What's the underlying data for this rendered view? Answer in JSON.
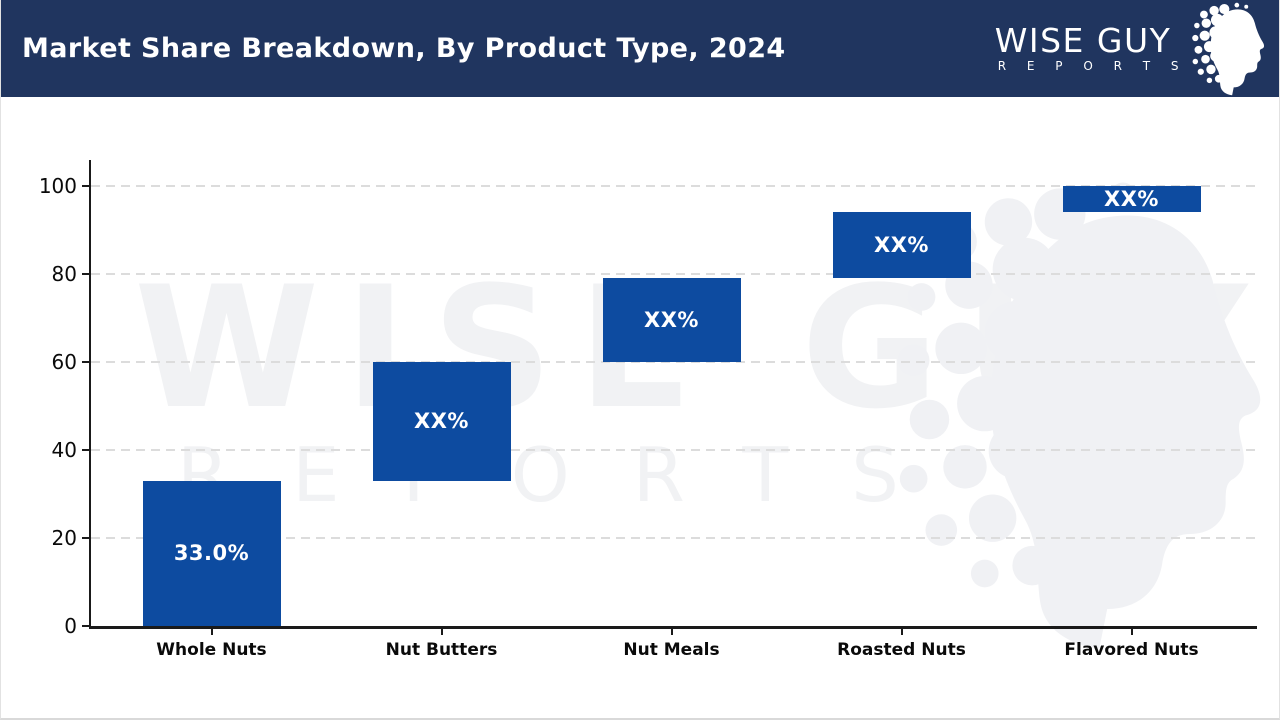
{
  "header": {
    "title": "Market Share Breakdown, By Product Type, 2024",
    "bg_color": "#20355f",
    "logo": {
      "wordmark": "WISE GUY",
      "subtext": "R E P O R T S"
    }
  },
  "watermark": {
    "wordmark": "WISE GUY",
    "subtext": "REPORTS"
  },
  "chart_data": {
    "type": "bar",
    "subtype": "waterfall",
    "title": "Market Share Breakdown, By Product Type, 2024",
    "categories": [
      "Whole Nuts",
      "Nut Butters",
      "Nut Meals",
      "Roasted Nuts",
      "Flavored Nuts"
    ],
    "segments": [
      {
        "category": "Whole Nuts",
        "start": 0,
        "end": 33,
        "label": "33.0%"
      },
      {
        "category": "Nut Butters",
        "start": 33,
        "end": 60,
        "label": "XX%"
      },
      {
        "category": "Nut Meals",
        "start": 60,
        "end": 79,
        "label": "XX%"
      },
      {
        "category": "Roasted Nuts",
        "start": 79,
        "end": 94,
        "label": "XX%"
      },
      {
        "category": "Flavored Nuts",
        "start": 94,
        "end": 100,
        "label": "XX%"
      }
    ],
    "yticks": [
      0,
      20,
      40,
      60,
      80,
      100
    ],
    "ylim": [
      0,
      105
    ],
    "xlabel": "",
    "ylabel": "",
    "legend": "none",
    "grid": "dashed-horizontal",
    "grid_color": "#dcdcdc",
    "bar_color": "#0d4ba0",
    "bar_label_color": "#ffffff",
    "axis_color": "#1a1a1a"
  }
}
